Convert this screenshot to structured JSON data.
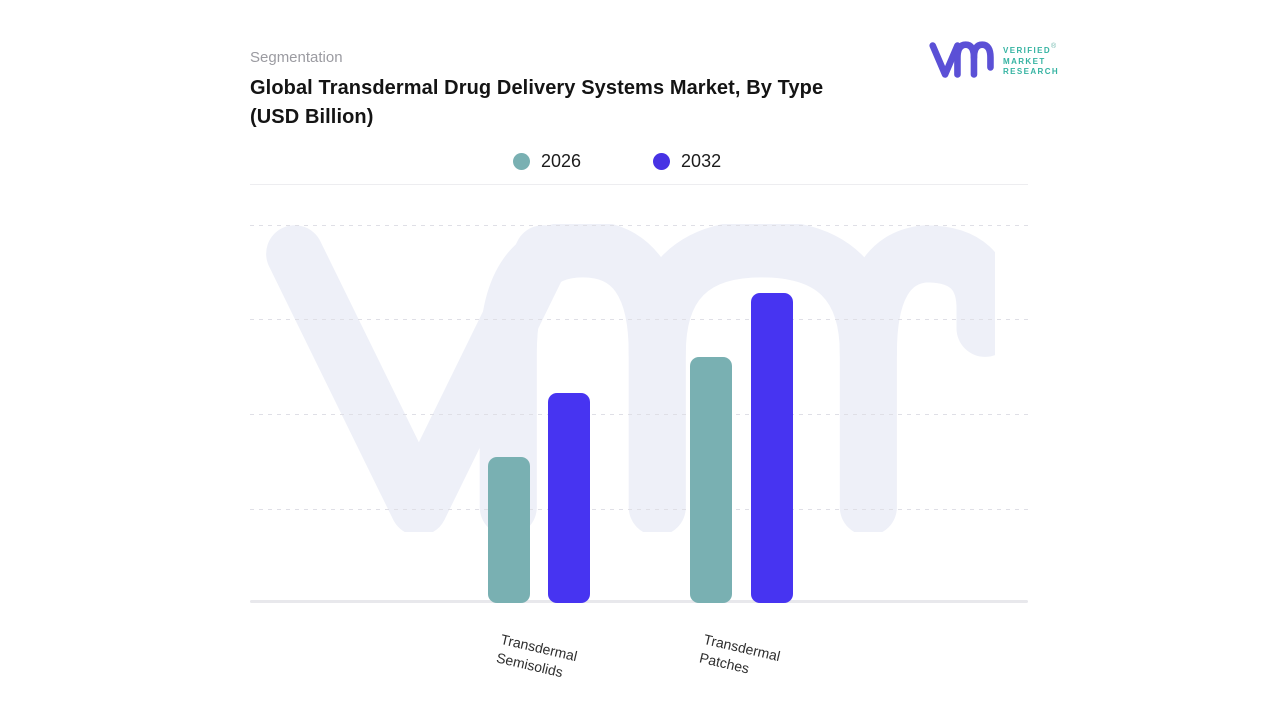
{
  "header": {
    "eyebrow": "Segmentation",
    "title_line1": "Global Transdermal Drug Delivery Systems Market, By Type",
    "title_line2": "(USD Billion)"
  },
  "brand": {
    "mark": "vmr-monogram",
    "word1": "VERIFIED",
    "word2": "MARKET",
    "word3": "RESEARCH",
    "registered_mark": "®",
    "mark_color": "#5b50d6",
    "text_color": "#35b3a2"
  },
  "legend": {
    "items": [
      {
        "label": "2026",
        "color": "#79b0b2"
      },
      {
        "label": "2032",
        "color": "#4732e4"
      }
    ]
  },
  "x_axis": {
    "labels": [
      {
        "line1": "Transdermal",
        "line2": "Semisolids"
      },
      {
        "line1": "Transdermal",
        "line2": "Patches"
      }
    ]
  },
  "chart_data": {
    "type": "bar",
    "title": "Global Transdermal Drug Delivery Systems Market, By Type (USD Billion)",
    "categories": [
      "Transdermal Semisolids",
      "Transdermal Patches"
    ],
    "series": [
      {
        "name": "2026",
        "color": "#79b0b2",
        "values": [
          1.55,
          2.6
        ]
      },
      {
        "name": "2032",
        "color": "#4734f1",
        "values": [
          2.22,
          3.28
        ]
      }
    ],
    "xlabel": "",
    "ylabel": "",
    "unit": "USD Billion (numeric scale not labeled on axis)",
    "value_note": "No y-axis tick labels visible; values estimated in gridline units (1 unit = one horizontal gridline interval, 4 intervals total)",
    "ylim": [
      0,
      4
    ],
    "grid": "horizontal dashed lines, no vertical grid",
    "legend_position": "top-center",
    "background_watermark": "vmr"
  }
}
